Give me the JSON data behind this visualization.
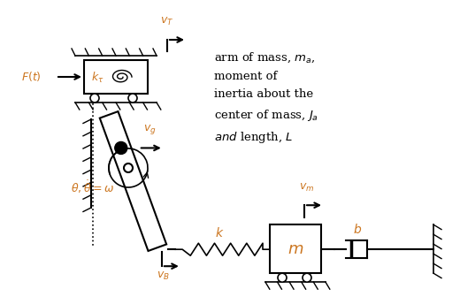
{
  "bg_color": "#ffffff",
  "orange_color": "#cc7722",
  "lc": "#000000",
  "figsize": [
    5.2,
    3.44
  ],
  "dpi": 100,
  "text_info": "arm of mass, $m_a$,\nmoment of\ninertia about the\ncenter of mass, $J_a$\n$\\mathit{and}$ length, $L$"
}
